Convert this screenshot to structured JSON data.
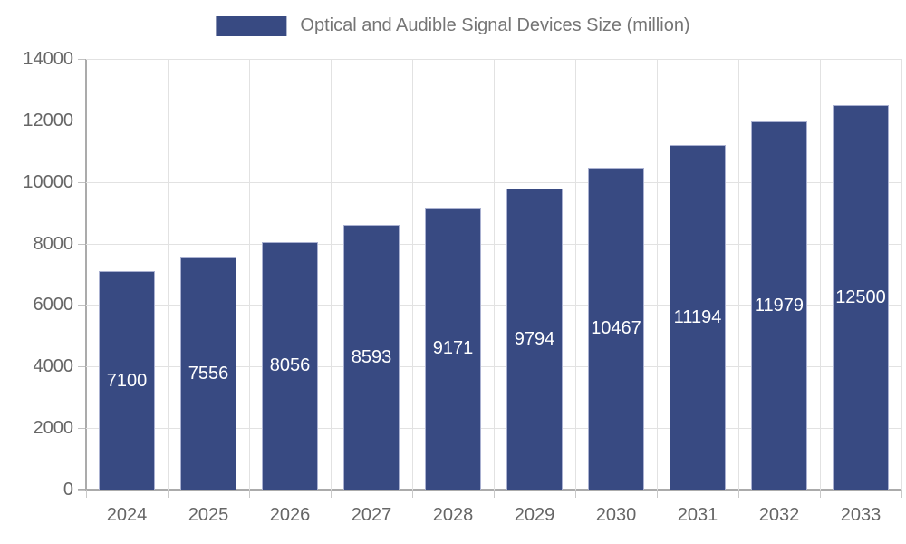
{
  "chart_data": {
    "type": "bar",
    "title": "Optical and Audible Signal Devices Size (million)",
    "legend": {
      "label": "Optical and Audible Signal Devices Size (million)",
      "position": "top-center"
    },
    "categories": [
      "2024",
      "2025",
      "2026",
      "2027",
      "2028",
      "2029",
      "2030",
      "2031",
      "2032",
      "2033"
    ],
    "values": [
      7100,
      7556,
      8056,
      8593,
      9171,
      9794,
      10467,
      11194,
      11979,
      12500
    ],
    "value_labels_inside_bars": true,
    "xlabel": "",
    "ylabel": "",
    "ylim": [
      0,
      14000
    ],
    "yticks": [
      0,
      2000,
      4000,
      6000,
      8000,
      10000,
      12000,
      14000
    ],
    "grid": true,
    "colors": {
      "bar_fill": "#384A82",
      "bar_border": "#AAB1D1",
      "value_label": "#FFFFFF",
      "axis_text": "#666666",
      "legend_text": "#757575",
      "grid_line": "#E2E2E2",
      "axis_line": "#ABABAB",
      "background": "#FFFFFF"
    }
  }
}
